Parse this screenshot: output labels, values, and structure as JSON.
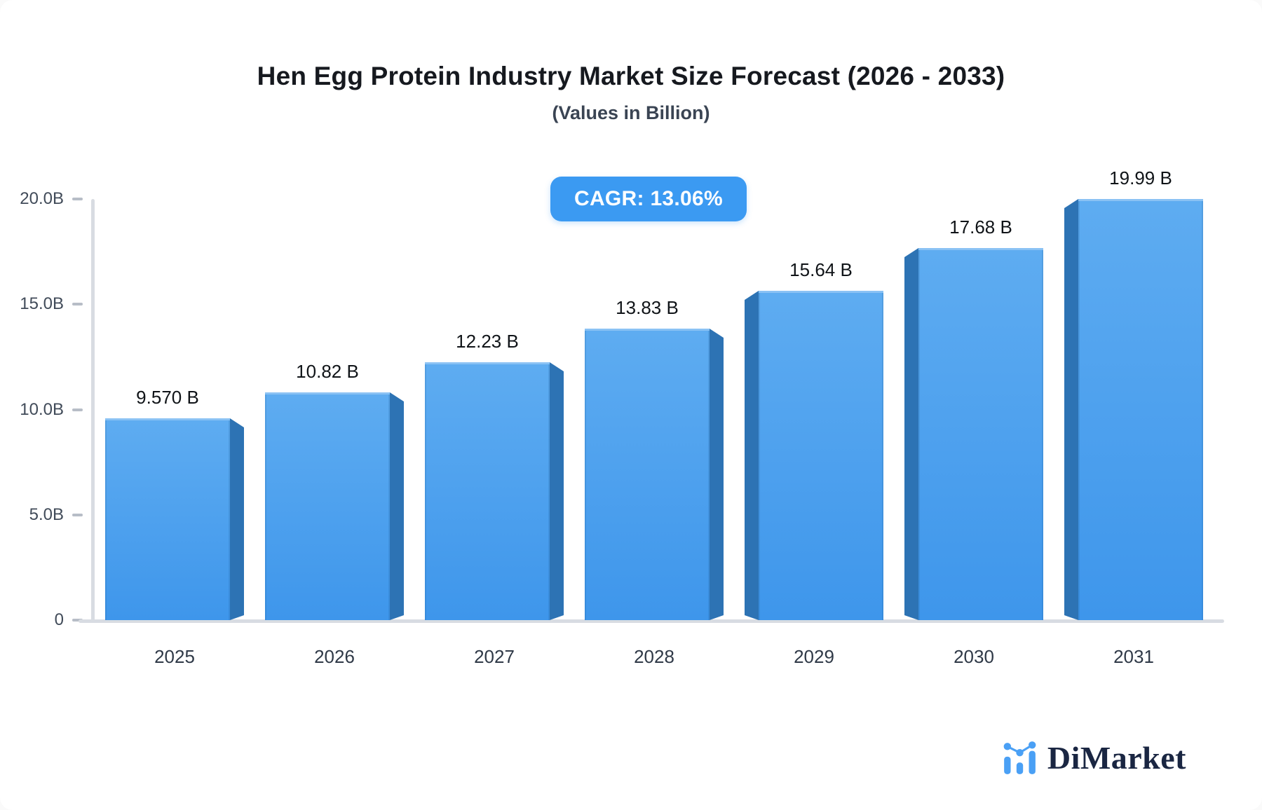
{
  "chart_data": {
    "type": "bar",
    "title": "Hen Egg Protein Industry Market Size Forecast (2026 - 2033)",
    "subtitle": "(Values in Billion)",
    "annotation": "CAGR: 13.06%",
    "categories": [
      "2025",
      "2026",
      "2027",
      "2028",
      "2029",
      "2030",
      "2031"
    ],
    "values": [
      9.57,
      10.82,
      12.23,
      13.83,
      15.64,
      17.68,
      19.99
    ],
    "value_labels": [
      "9.570 B",
      "10.82 B",
      "12.23 B",
      "13.83 B",
      "15.64 B",
      "17.68 B",
      "19.99 B"
    ],
    "xlabel": "",
    "ylabel": "",
    "ylim": [
      0,
      20
    ],
    "grid": false,
    "legend": false,
    "y_axis": {
      "ticks": [
        {
          "label": "20.0B",
          "value": 20
        },
        {
          "label": "15.0B",
          "value": 15
        },
        {
          "label": "10.0B",
          "value": 10
        },
        {
          "label": "5.0B",
          "value": 5
        },
        {
          "label": "0",
          "value": 0
        }
      ]
    }
  },
  "footer": {
    "brand": "DiMarket",
    "logo_icon": "bar-chart-logo-icon"
  },
  "colors": {
    "badge_bg": "#3B9AF2",
    "badge_text": "#FFFFFF",
    "bar_face_top": "#5EACF1",
    "bar_face_bottom": "#3E96EB",
    "bar_side": "#2D73B4",
    "bar_highlight": "#8AC2F4",
    "axis_line": "#D8DCE2",
    "tick_dash": "#B7BDC7",
    "title_text": "#16191F",
    "subtitle_text": "#3A4453",
    "axis_label": "#414B59",
    "value_label": "#101418",
    "category_label": "#2F3947",
    "brand_text": "#1A2642",
    "brand_icon": "#4AA0F5"
  }
}
